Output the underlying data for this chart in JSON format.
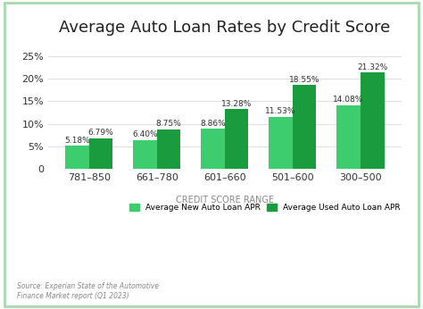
{
  "title": "Average Auto Loan Rates by Credit Score",
  "categories": [
    "781–850",
    "661–780",
    "601–660",
    "501–600",
    "300–500"
  ],
  "new_values": [
    5.18,
    6.4,
    8.86,
    11.53,
    14.08
  ],
  "used_values": [
    6.79,
    8.75,
    13.28,
    18.55,
    21.32
  ],
  "new_labels": [
    "5.18%",
    "6.40%",
    "8.86%",
    "11.53%",
    "14.08%"
  ],
  "used_labels": [
    "6.79%",
    "8.75%",
    "13.28%",
    "18.55%",
    "21.32%"
  ],
  "new_color": "#3dcd6e",
  "used_color": "#1a9c3e",
  "xlabel": "CREDIT SCORE RANGE",
  "ylim": [
    0,
    27
  ],
  "yticks": [
    0,
    5,
    10,
    15,
    20,
    25
  ],
  "ytick_labels": [
    "0",
    "5%",
    "10%",
    "15%",
    "20%",
    "25%"
  ],
  "source_text": "Source: Experian State of the Automotive\nFinance Market report (Q1 2023)",
  "legend_new": "Average New Auto Loan APR",
  "legend_used": "Average Used Auto Loan APR",
  "background_color": "#ffffff",
  "border_color": "#a8d8b0",
  "title_fontsize": 13,
  "label_fontsize": 6.5,
  "tick_fontsize": 8,
  "xlabel_fontsize": 7,
  "bar_width": 0.35
}
